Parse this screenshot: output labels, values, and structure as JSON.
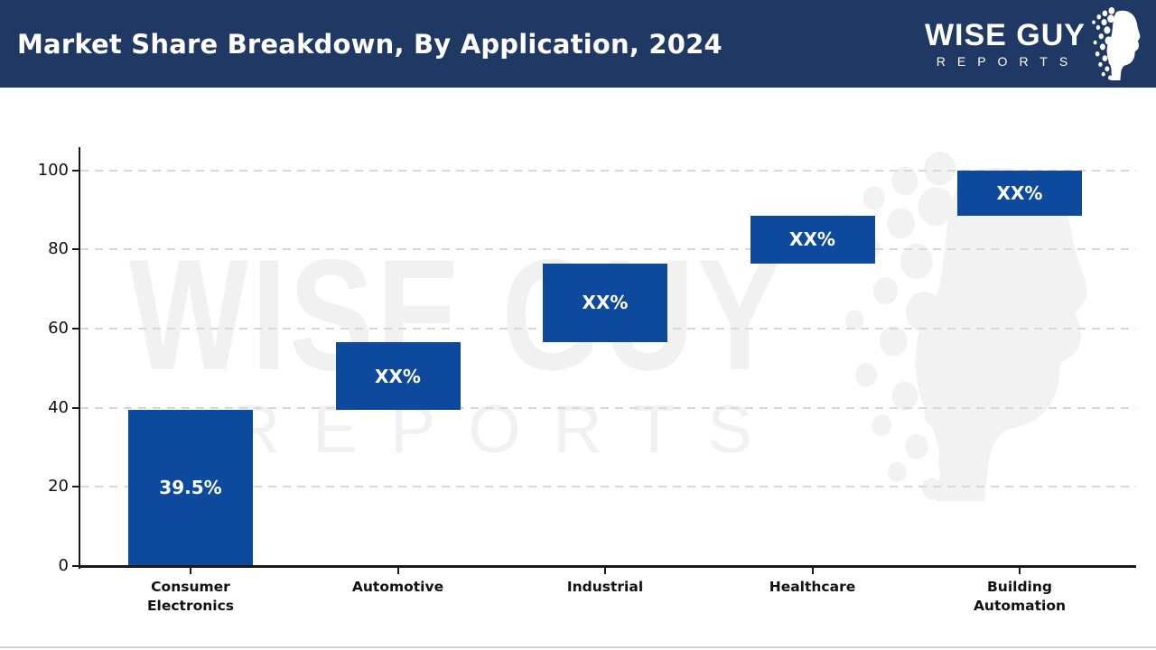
{
  "header": {
    "title": "Market Share Breakdown, By Application, 2024",
    "bg_color": "#1f3864",
    "brand": {
      "line1": "WISE GUY",
      "line2": "REPORTS"
    }
  },
  "watermark": {
    "line1": "WISE GUY",
    "line2": "REPORTS"
  },
  "chart_data": {
    "type": "bar",
    "variant": "waterfall",
    "title": "Market Share Breakdown, By Application, 2024",
    "unit": "%",
    "categories": [
      "Consumer Electronics",
      "Automotive",
      "Industrial",
      "Healthcare",
      "Building Automation"
    ],
    "segments": [
      {
        "category": "Consumer Electronics",
        "start": 0,
        "end": 39.5,
        "label": "39.5%"
      },
      {
        "category": "Automotive",
        "start": 39.5,
        "end": 56.5,
        "label": "XX%"
      },
      {
        "category": "Industrial",
        "start": 56.5,
        "end": 76.5,
        "label": "XX%"
      },
      {
        "category": "Healthcare",
        "start": 76.5,
        "end": 88.5,
        "label": "XX%"
      },
      {
        "category": "Building Automation",
        "start": 88.5,
        "end": 100,
        "label": "XX%"
      }
    ],
    "yticks": [
      0,
      20,
      40,
      60,
      80,
      100
    ],
    "ylim": [
      0,
      105.8
    ],
    "xlabel": "",
    "ylabel": "",
    "grid": "horizontal-dashed",
    "legend": "none",
    "colors": {
      "bar": "#0d4a9e",
      "bar_label": "#ffffff",
      "grid": "#d9d9d9",
      "axis": "#1a1a1a",
      "tick_label": "#111111"
    }
  }
}
